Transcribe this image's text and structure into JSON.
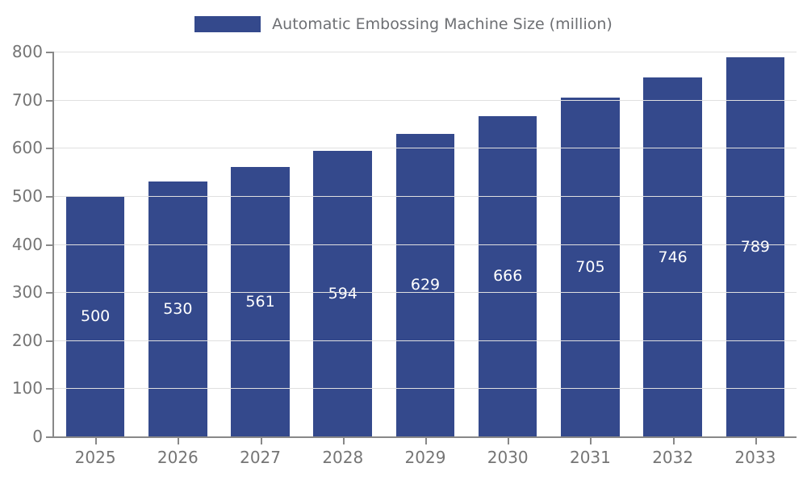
{
  "chart_data": {
    "type": "bar",
    "title": "Automatic Embossing Machine Size (million)",
    "categories": [
      "2025",
      "2026",
      "2027",
      "2028",
      "2029",
      "2030",
      "2031",
      "2032",
      "2033"
    ],
    "values": [
      500,
      530,
      561,
      594,
      629,
      666,
      705,
      746,
      789
    ],
    "xlabel": "",
    "ylabel": "",
    "ylim": [
      0,
      800
    ],
    "ytick_step": 100,
    "grid": true,
    "legend_position": "top-center",
    "bar_color": "#34498c",
    "value_label_color": "#ffffff",
    "tick_label_color": "#757575",
    "title_color": "#6d6f73",
    "axis_color": "#888888",
    "gridline_color": "#e0e0e0"
  }
}
